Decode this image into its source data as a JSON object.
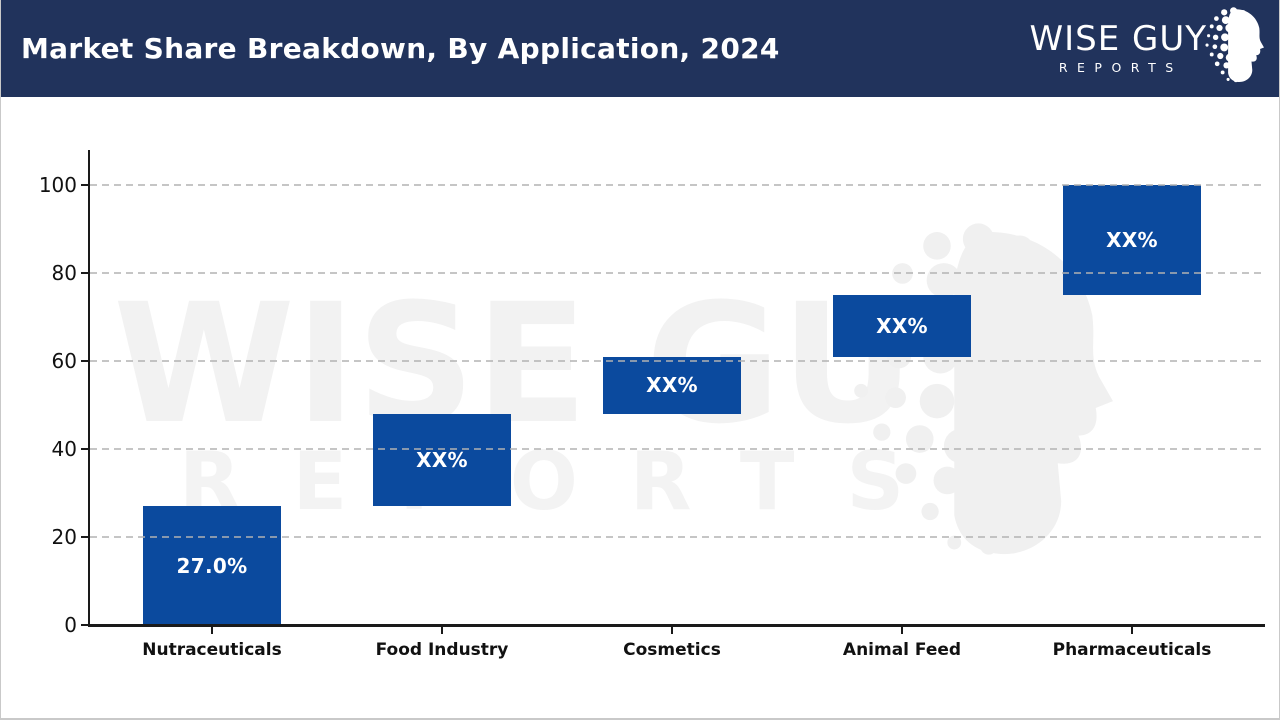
{
  "header": {
    "title": "Market Share Breakdown, By Application, 2024",
    "logo": {
      "name": "WISE GUY",
      "tagline": "REPORTS"
    }
  },
  "watermark": {
    "line1": "WISE GUY",
    "line2": "REPORTS"
  },
  "chart_data": {
    "type": "bar",
    "subtype": "floating-waterfall",
    "title": "Market Share Breakdown, By Application, 2024",
    "categories": [
      "Nutraceuticals",
      "Food Industry",
      "Cosmetics",
      "Animal Feed",
      "Pharmaceuticals"
    ],
    "segments": [
      {
        "category": "Nutraceuticals",
        "start": 0,
        "end": 27,
        "label": "27.0%"
      },
      {
        "category": "Food Industry",
        "start": 27,
        "end": 48,
        "label": "XX%"
      },
      {
        "category": "Cosmetics",
        "start": 48,
        "end": 61,
        "label": "XX%"
      },
      {
        "category": "Animal Feed",
        "start": 61,
        "end": 75,
        "label": "XX%"
      },
      {
        "category": "Pharmaceuticals",
        "start": 75,
        "end": 100,
        "label": "XX%"
      }
    ],
    "ylim": [
      0,
      100
    ],
    "yticks": [
      0,
      20,
      40,
      60,
      80,
      100
    ],
    "xlabel": "",
    "ylabel": "",
    "grid": {
      "horizontal": true,
      "style": "dashed"
    },
    "legend": "none",
    "colors": {
      "bar": "#0b4a9e",
      "bar_label": "#ffffff",
      "header_bg": "#21335c",
      "grid_line": "#b2b2b2",
      "axis": "#1a1a1a",
      "tick_label": "#111111",
      "watermark": "#f2f2f2"
    }
  }
}
